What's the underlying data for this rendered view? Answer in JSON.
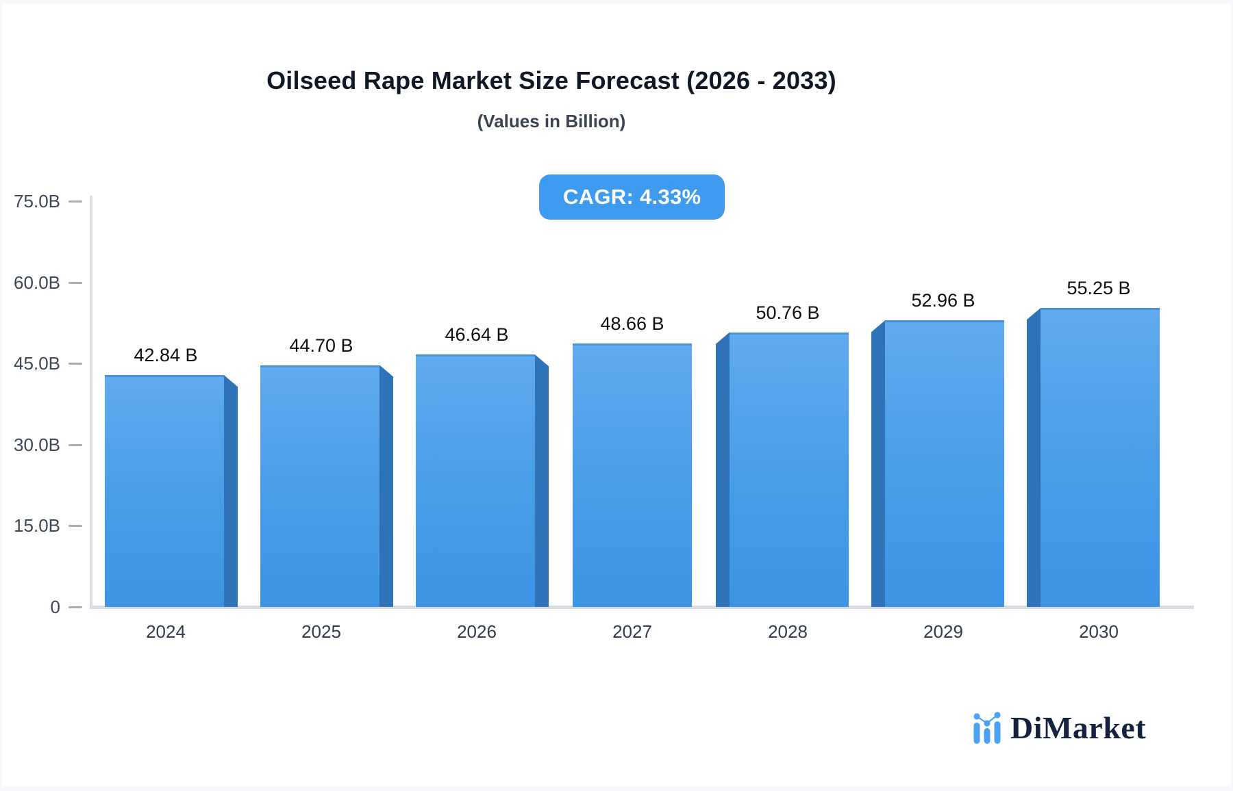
{
  "header": {
    "title": "Oilseed Rape Market Size Forecast (2026 - 2033)",
    "subtitle": "(Values in Billion)",
    "cagr_badge": "CAGR: 4.33%"
  },
  "chart_data": {
    "type": "bar",
    "title": "Oilseed Rape Market Size Forecast (2026 - 2033)",
    "subtitle": "(Values in Billion)",
    "annotation": "CAGR: 4.33%",
    "categories": [
      "2024",
      "2025",
      "2026",
      "2027",
      "2028",
      "2029",
      "2030"
    ],
    "values": [
      42.84,
      44.7,
      46.64,
      48.66,
      50.76,
      52.96,
      55.25
    ],
    "value_labels": [
      "42.84 B",
      "44.70 B",
      "46.64 B",
      "48.66 B",
      "50.76 B",
      "52.96 B",
      "55.25 B"
    ],
    "ylim": [
      0,
      75
    ],
    "yticks": [
      0,
      15,
      30,
      45,
      60,
      75
    ],
    "ytick_labels": [
      "0",
      "15.0B",
      "30.0B",
      "45.0B",
      "60.0B",
      "75.0B"
    ],
    "grid": false,
    "legend": false,
    "bar_style": "3d-bevel",
    "colors": {
      "bar_face_top": "#61aaef",
      "bar_face_bottom": "#3d94e5",
      "bar_side": "#2e72b7",
      "badge_background": "#3f9bf0",
      "badge_text": "#ffffff",
      "axis": "#d9dce2",
      "tick_text": "#3d4654",
      "value_text": "#0c0e12",
      "title_text": "#101826"
    }
  },
  "footer": {
    "brand": "DiMarket",
    "logo_icon": "bar-chart-with-trend-dots-icon",
    "logo_color": "#4aa3f5",
    "brand_text_color": "#15223e"
  }
}
